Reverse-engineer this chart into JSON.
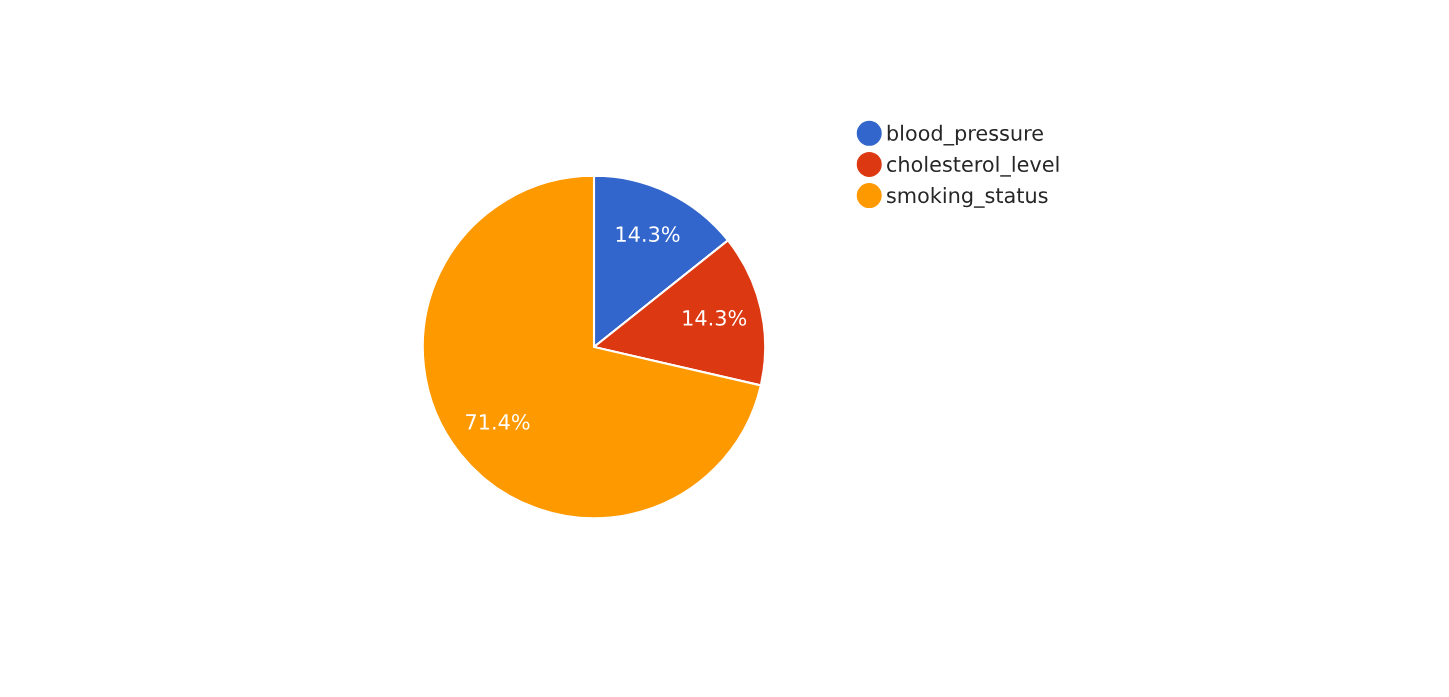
{
  "chart_data": {
    "type": "pie",
    "categories": [
      "blood_pressure",
      "cholesterol_level",
      "smoking_status"
    ],
    "values": [
      14.3,
      14.3,
      71.4
    ],
    "colors": [
      "#3366cc",
      "#dc3912",
      "#ff9900"
    ],
    "value_labels": [
      "14.3%",
      "14.3%",
      "71.4%"
    ],
    "legend": "top right"
  }
}
